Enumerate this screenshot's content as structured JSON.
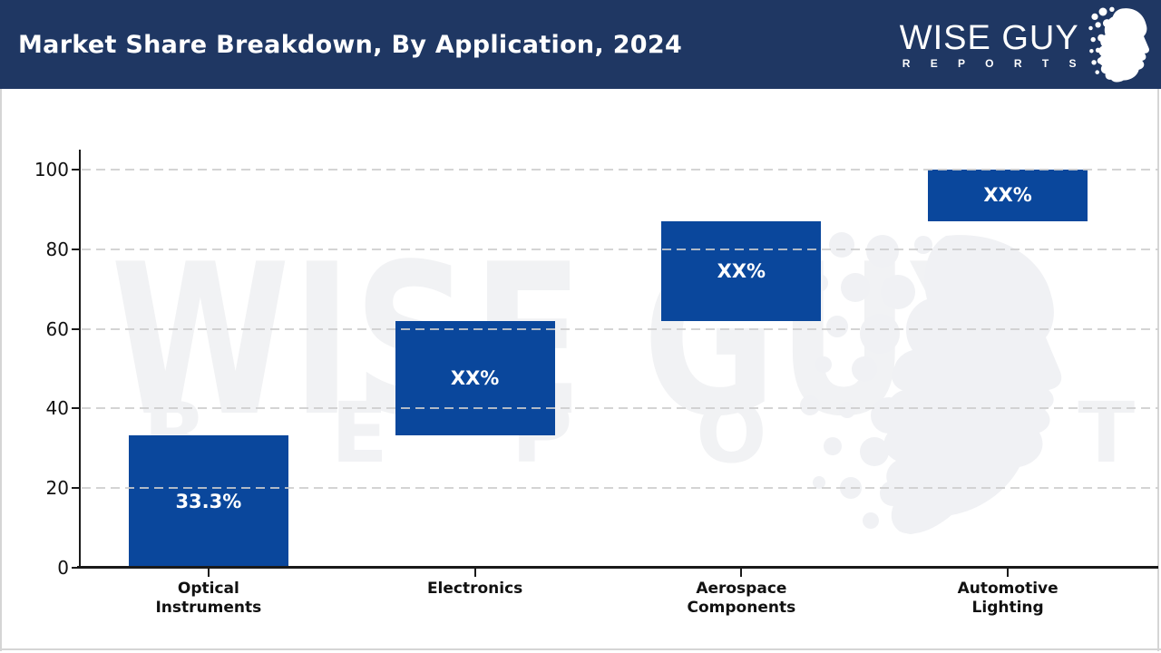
{
  "header": {
    "title": "Market Share Breakdown, By Application, 2024",
    "brand": {
      "line1": "WISE GUY",
      "line2": "R E P O R T S"
    }
  },
  "watermark": {
    "line1": "WISE GUY",
    "line2": "R E P O R T S"
  },
  "colors": {
    "header_bg": "#1f3763",
    "bar_fill": "#0a479c",
    "bar_label": "#ffffff",
    "axis": "#1a1a1a",
    "tick_label": "#111111",
    "gridline": "#d8d8d8",
    "watermark": "#f1f2f4",
    "chart_border": "#d5d5d5",
    "background": "#ffffff"
  },
  "chart_data": {
    "type": "bar",
    "variant": "floating-waterfall",
    "title": "Market Share Breakdown, By Application, 2024",
    "xlabel": "",
    "ylabel": "",
    "ylim": [
      0,
      105
    ],
    "yticks": [
      0,
      20,
      40,
      60,
      80,
      100
    ],
    "grid": "horizontal-dashed",
    "legend": "none",
    "categories": [
      "Optical Instruments",
      "Electronics",
      "Aerospace Components",
      "Automotive Lighting"
    ],
    "category_lines": [
      [
        "Optical",
        "Instruments"
      ],
      [
        "Electronics"
      ],
      [
        "Aerospace",
        "Components"
      ],
      [
        "Automotive",
        "Lighting"
      ]
    ],
    "bars": [
      {
        "category": "Optical Instruments",
        "start": 0,
        "end": 33.3,
        "value_label": "33.3%"
      },
      {
        "category": "Electronics",
        "start": 33.3,
        "end": 62,
        "value_label": "XX%"
      },
      {
        "category": "Aerospace Components",
        "start": 62,
        "end": 87,
        "value_label": "XX%"
      },
      {
        "category": "Automotive Lighting",
        "start": 87,
        "end": 100,
        "value_label": "XX%"
      }
    ]
  }
}
